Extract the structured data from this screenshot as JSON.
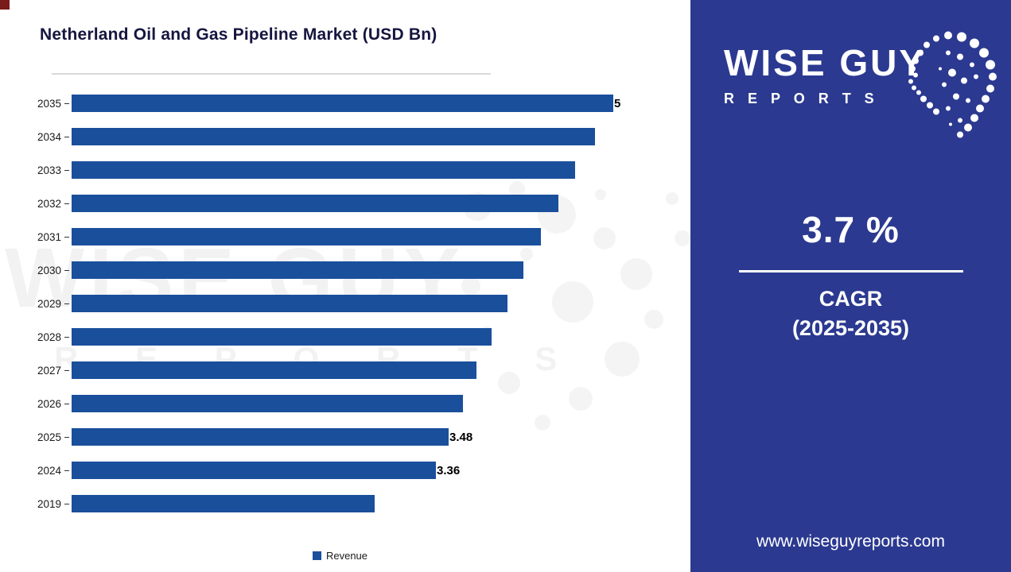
{
  "header": {
    "title": "Netherland Oil and Gas Pipeline Market (USD Bn)"
  },
  "legend": {
    "revenue": "Revenue"
  },
  "watermark": {
    "line1": "WISE GUY",
    "line2": "R E P O R T S"
  },
  "brand_panel": {
    "logo_line1": "WISE GUY",
    "logo_line2": "R E P O R T S",
    "cagr_value": "3.7 %",
    "cagr_label": "CAGR",
    "cagr_range": "(2025-2035)",
    "website": "www.wiseguyreports.com"
  },
  "colors": {
    "bar": "#1a4f9c",
    "panel": "#2b3990",
    "corner": "#7a1b1b",
    "title_text": "#15163f",
    "divider": "#d9d9d9"
  },
  "chart_data": {
    "type": "bar",
    "orientation": "horizontal",
    "title": "Netherland Oil and Gas Pipeline Market (USD Bn)",
    "xlabel": "",
    "ylabel": "",
    "categories": [
      "2035",
      "2034",
      "2033",
      "2032",
      "2031",
      "2030",
      "2029",
      "2028",
      "2027",
      "2026",
      "2025",
      "2024",
      "2019"
    ],
    "values": [
      5.0,
      4.83,
      4.65,
      4.49,
      4.33,
      4.17,
      4.02,
      3.88,
      3.74,
      3.61,
      3.48,
      3.36,
      2.8
    ],
    "data_labels": {
      "2035": "5",
      "2025": "3.48",
      "2024": "3.36"
    },
    "xlim": [
      0,
      5.7
    ],
    "grid": false,
    "legend": [
      "Revenue"
    ],
    "legend_position": "bottom-center",
    "cagr_percent": 3.7,
    "cagr_period": "2025-2035"
  }
}
